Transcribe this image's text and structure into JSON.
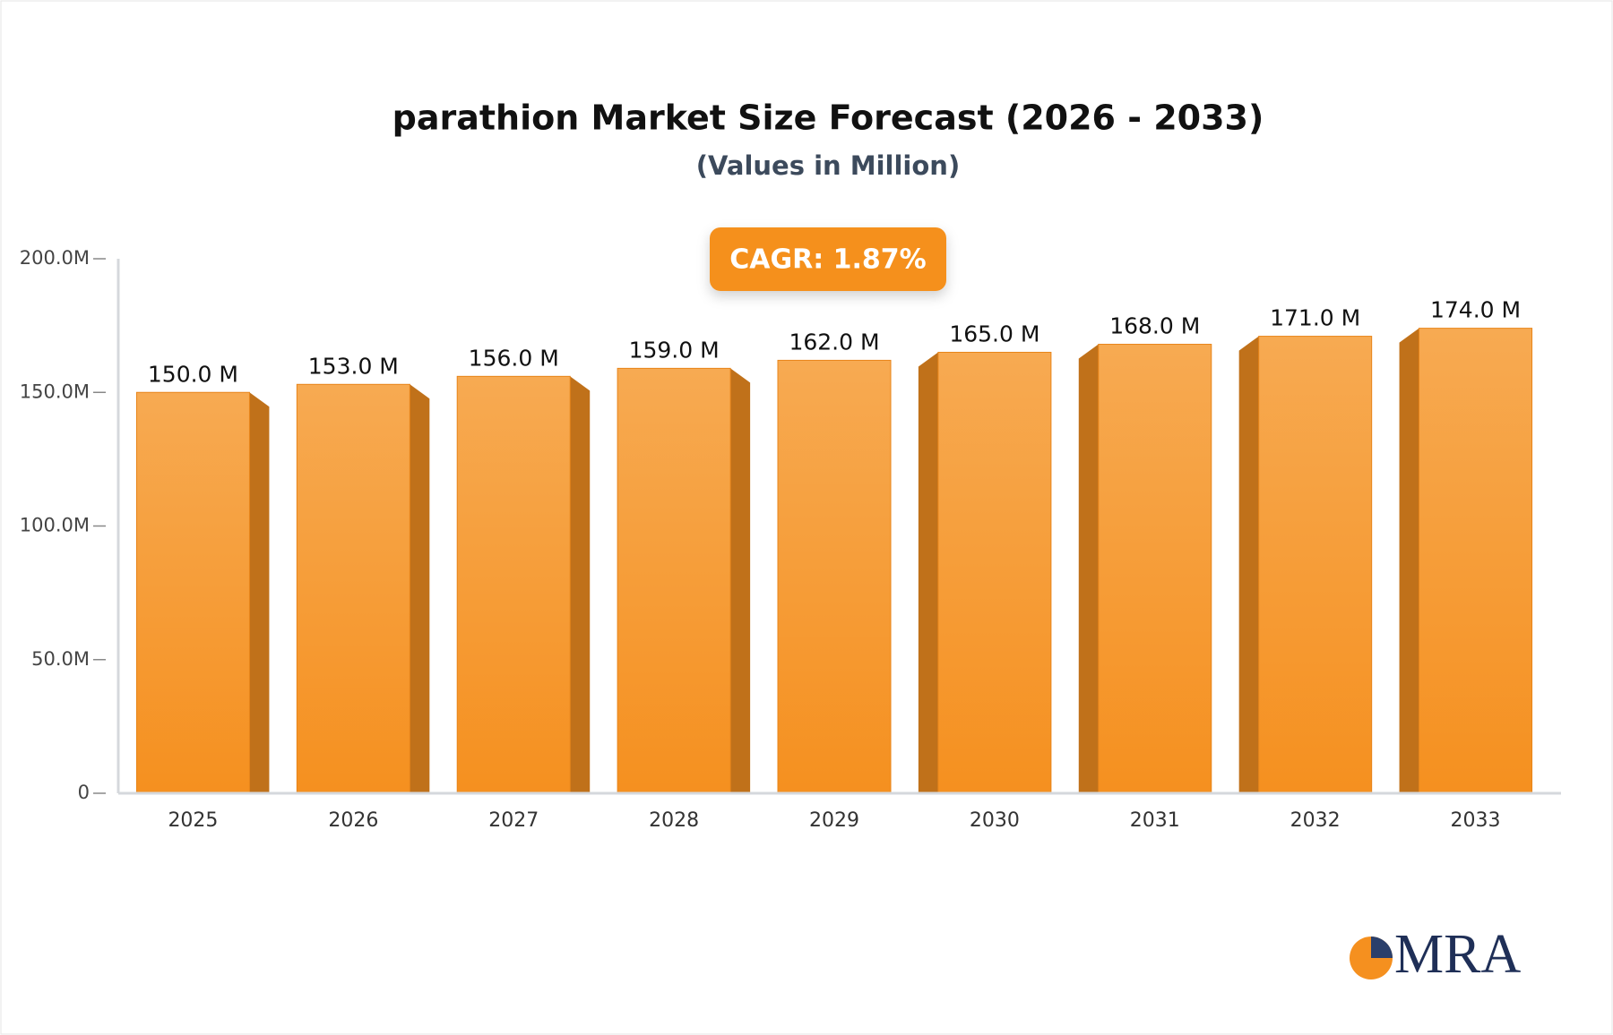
{
  "chart_data": {
    "type": "bar3d",
    "title": "parathion Market Size Forecast (2026 - 2033)",
    "subtitle": "(Values in Million)",
    "annotation": "CAGR: 1.87%",
    "categories": [
      "2025",
      "2026",
      "2027",
      "2028",
      "2029",
      "2030",
      "2031",
      "2032",
      "2033"
    ],
    "values": [
      150,
      153,
      156,
      159,
      162,
      165,
      168,
      171,
      174
    ],
    "value_labels": [
      "150.0 M",
      "153.0 M",
      "156.0 M",
      "159.0 M",
      "162.0 M",
      "165.0 M",
      "168.0 M",
      "171.0 M",
      "174.0 M"
    ],
    "color": "#f5961f",
    "ylim": [
      0,
      200
    ],
    "yticks": [
      0,
      {
        "value": 50,
        "label": "50.0M"
      },
      {
        "value": 100,
        "label": "100.0M"
      },
      {
        "value": 150,
        "label": "150.0M"
      },
      {
        "value": 200,
        "label": "200.0M"
      }
    ],
    "grid": false
  },
  "logo": "MRA"
}
